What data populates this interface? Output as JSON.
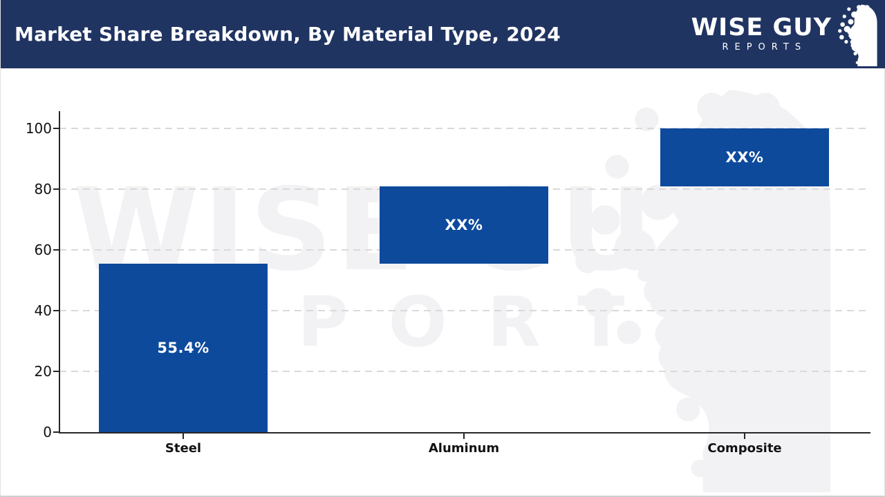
{
  "header": {
    "title": "Market Share Breakdown, By Material Type, 2024",
    "logo": {
      "line1": "WISE GUY",
      "line2": "REPORTS"
    }
  },
  "watermark": {
    "line1": "WISE GUY",
    "line2": "REPORTS"
  },
  "chart_data": {
    "type": "bar",
    "variant": "waterfall",
    "title": "Market Share Breakdown, By Material Type, 2024",
    "categories": [
      "Steel",
      "Aluminum",
      "Composite"
    ],
    "bars": [
      {
        "category": "Steel",
        "base": 0,
        "top": 55.4,
        "label": "55.4%"
      },
      {
        "category": "Aluminum",
        "base": 55.4,
        "top": 81,
        "label": "XX%"
      },
      {
        "category": "Composite",
        "base": 81,
        "top": 100,
        "label": "XX%"
      }
    ],
    "xlabel": "",
    "ylabel": "",
    "ylim": [
      0,
      105
    ],
    "yticks": [
      0,
      20,
      40,
      60,
      80,
      100
    ],
    "grid": "horizontal-dashed",
    "legend": "none",
    "colors": {
      "bar": "#0d4a9c",
      "bar_label": "#ffffff",
      "grid": "#d9d9d9",
      "axis": "#262626",
      "tick_text": "#111111",
      "header_bg": "#203462",
      "watermark": "#f2f2f5"
    }
  }
}
